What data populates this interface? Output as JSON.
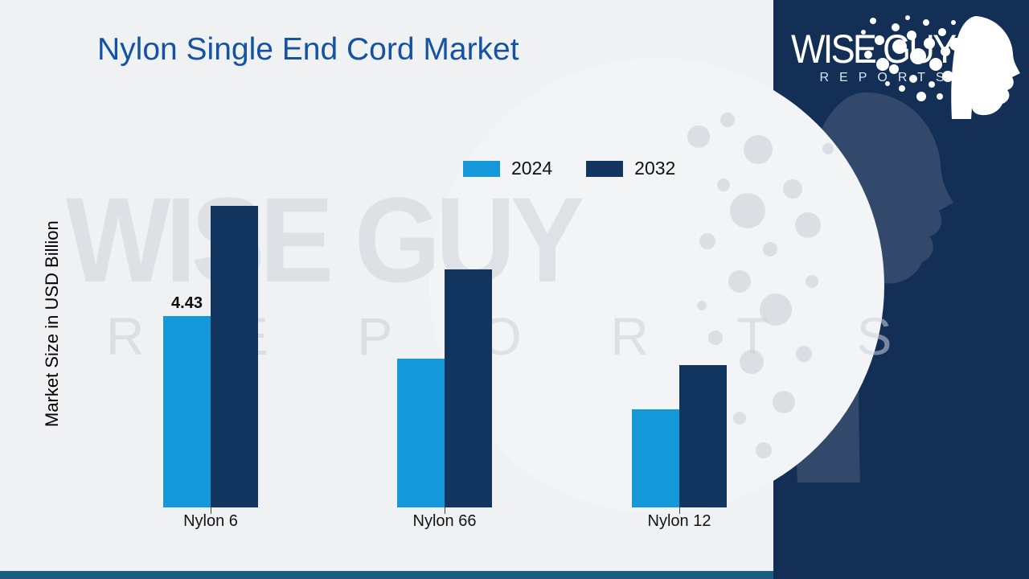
{
  "page": {
    "background": "#eff1f3",
    "bottom_strip_color": "#1a5f7f",
    "panel_color": "#142f56"
  },
  "title": {
    "text": "Nylon Single End Cord Market",
    "color": "#1453a3"
  },
  "brand": {
    "name": "WISE GUY",
    "sub": "REPORTS",
    "face_icon": "face-profile-dots-icon"
  },
  "watermark": {
    "line1": "WISE GUY",
    "line2": "R E P O R T S"
  },
  "chart_data": {
    "type": "bar",
    "title": "Nylon Single End Cord Market",
    "categories": [
      "Nylon 6",
      "Nylon 66",
      "Nylon 12"
    ],
    "series": [
      {
        "name": "2024",
        "color": "#1598da",
        "values": [
          4.43,
          3.44,
          2.27
        ]
      },
      {
        "name": "2032",
        "color": "#123560",
        "values": [
          6.98,
          5.51,
          3.29
        ]
      }
    ],
    "data_labels": [
      [
        "4.43",
        null,
        null
      ],
      [
        null,
        null,
        null
      ]
    ],
    "xlabel": "",
    "ylabel": "Market Size in USD Billion",
    "ylim": [
      0,
      8
    ],
    "grid": false,
    "legend_position": "top-center"
  }
}
